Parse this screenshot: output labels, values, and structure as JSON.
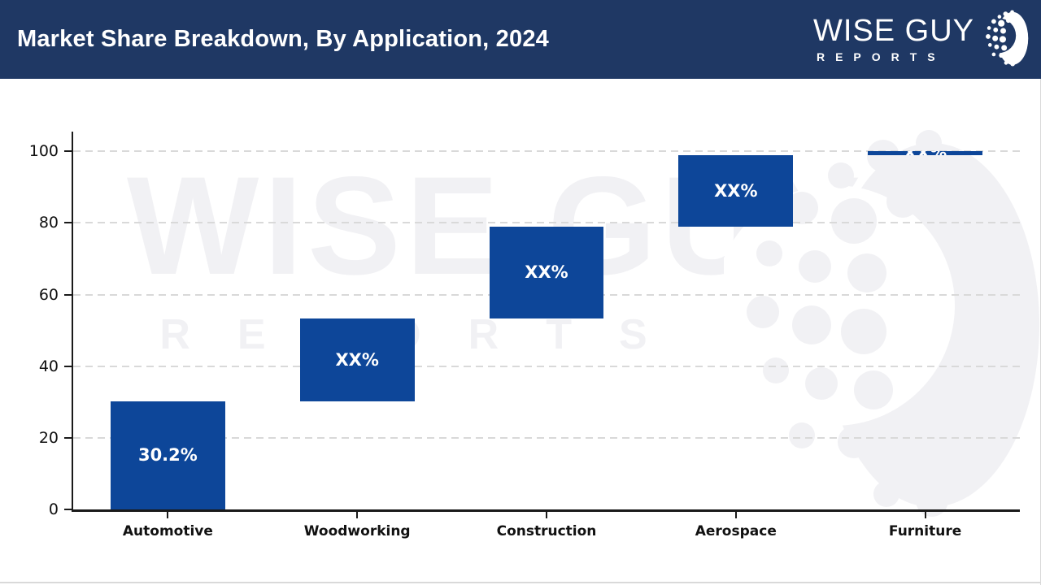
{
  "header": {
    "title": "Market Share Breakdown, By Application, 2024",
    "logo": {
      "line1": "WISE GUY",
      "line2": "REPORTS"
    }
  },
  "watermark": {
    "line1": "WISE GUY",
    "line2": "REPORTS"
  },
  "colors": {
    "header_bg": "#1f3864",
    "bar": "#0d4699",
    "grid": "#d9d9d9",
    "axis": "#1a1a1a",
    "bar_label": "#ffffff",
    "watermark": "#f1f1f4"
  },
  "chart_data": {
    "type": "bar",
    "subtype": "waterfall",
    "title": "Market Share Breakdown, By Application, 2024",
    "xlabel": "",
    "ylabel": "",
    "categories": [
      "Automotive",
      "Woodworking",
      "Construction",
      "Aerospace",
      "Furniture"
    ],
    "segments": [
      {
        "category": "Automotive",
        "start": 0,
        "end": 30.2,
        "value": 30.2,
        "label": "30.2%"
      },
      {
        "category": "Woodworking",
        "start": 30.2,
        "end": 53.4,
        "value": 23.2,
        "label": "XX%"
      },
      {
        "category": "Construction",
        "start": 53.4,
        "end": 79.0,
        "value": 25.6,
        "label": "XX%"
      },
      {
        "category": "Aerospace",
        "start": 79.0,
        "end": 99.0,
        "value": 20.0,
        "label": "XX%"
      },
      {
        "category": "Furniture",
        "start": 99.0,
        "end": 100.0,
        "value": 1.0,
        "label": "XX%"
      }
    ],
    "yticks": [
      0,
      20,
      40,
      60,
      80,
      100
    ],
    "ylim": [
      0,
      105.5
    ],
    "grid": "dashed-horizontal",
    "legend": null
  }
}
